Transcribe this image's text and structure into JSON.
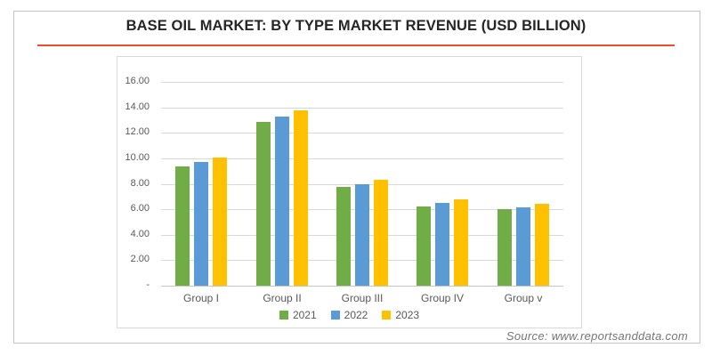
{
  "page": {
    "title": "BASE OIL MARKET: BY TYPE MARKET REVENUE (USD BILLION)",
    "source_text": "Source: www.reportsanddata.com",
    "colors": {
      "accent_line": "#E8502D",
      "title_text": "#262626",
      "axis_text": "#595959",
      "gridline": "#D9D9D9",
      "outer_border": "#C4C4C4",
      "chart_frame_border": "#D9D9D9"
    }
  },
  "chart_data": {
    "type": "bar",
    "title": "BASE OIL MARKET: BY TYPE MARKET REVENUE (USD BILLION)",
    "categories": [
      "Group I",
      "Group II",
      "Group III",
      "Group IV",
      "Group v"
    ],
    "series": [
      {
        "name": "2021",
        "color": "#70AD47",
        "values": [
          9.35,
          12.85,
          7.75,
          6.25,
          6.0
        ]
      },
      {
        "name": "2022",
        "color": "#5B9BD5",
        "values": [
          9.7,
          13.3,
          8.0,
          6.5,
          6.15
        ]
      },
      {
        "name": "2023",
        "color": "#FFC000",
        "values": [
          10.05,
          13.75,
          8.35,
          6.75,
          6.4
        ]
      }
    ],
    "y_ticks": [
      "16.00",
      "14.00",
      "12.00",
      "10.00",
      "8.00",
      "6.00",
      "4.00",
      "2.00",
      "-"
    ],
    "y_tick_values": [
      16,
      14,
      12,
      10,
      8,
      6,
      4,
      2,
      0
    ],
    "ylim": [
      0,
      16
    ],
    "ylabel": "",
    "xlabel": "",
    "grid": true,
    "legend_position": "bottom",
    "source": "Source: www.reportsanddata.com"
  }
}
